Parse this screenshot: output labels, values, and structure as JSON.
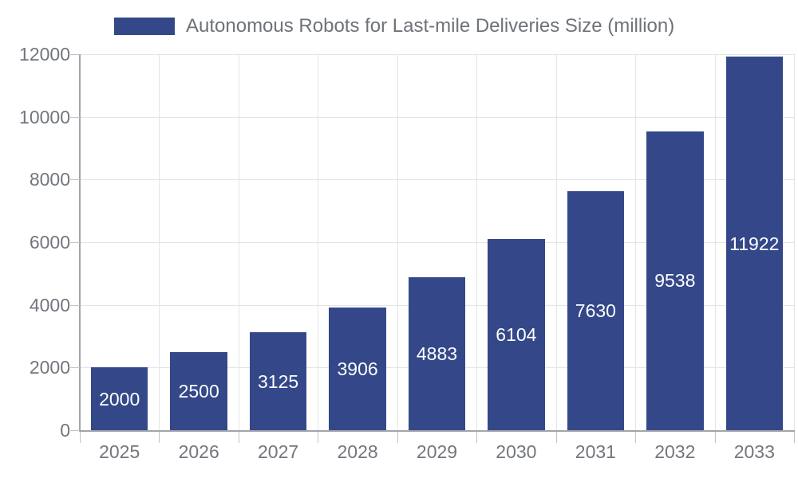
{
  "legend": {
    "label": "Autonomous Robots for Last-mile Deliveries Size (million)"
  },
  "chart_data": {
    "type": "bar",
    "title": "",
    "xlabel": "",
    "ylabel": "",
    "categories": [
      "2025",
      "2026",
      "2027",
      "2028",
      "2029",
      "2030",
      "2031",
      "2032",
      "2033"
    ],
    "series": [
      {
        "name": "Autonomous Robots for Last-mile Deliveries Size (million)",
        "values": [
          2000,
          2500,
          3125,
          3906,
          4883,
          6104,
          7630,
          9538,
          11922
        ]
      }
    ],
    "data_labels_shown": true,
    "data_label_position": "inside-center",
    "ylim": [
      0,
      12000
    ],
    "yticks": [
      0,
      2000,
      4000,
      6000,
      8000,
      10000,
      12000
    ],
    "grid": "horizontal-and-vertical",
    "legend_position": "top",
    "colors": {
      "bar": "#344889",
      "bar_label_text": "#ffffff",
      "axis_text": "#71767d",
      "legend_text": "#6e7279",
      "gridline": "#e3e4e8",
      "axis_line": "#a3a4aa",
      "tick_mark": "#c2c3c8",
      "background": "#ffffff"
    }
  }
}
